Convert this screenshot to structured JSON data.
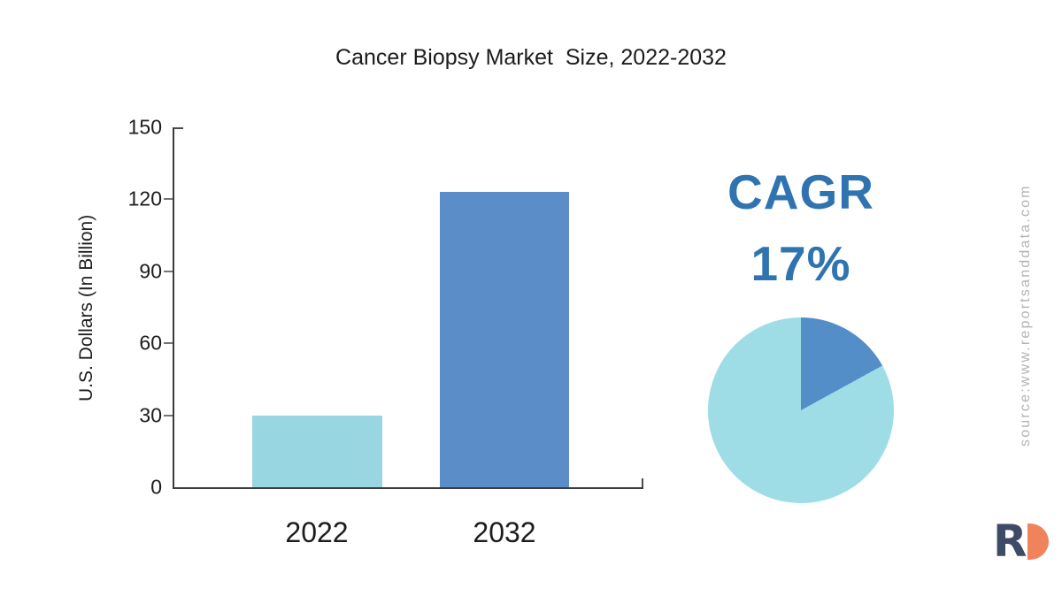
{
  "chart_data": [
    {
      "type": "bar",
      "title": "Cancer Biopsy Market  Size, 2022-2032",
      "categories": [
        "2022",
        "2032"
      ],
      "values": [
        30,
        123
      ],
      "xlabel": "",
      "ylabel": "U.S. Dollars (In Billion)",
      "ylim": [
        0,
        150
      ],
      "yticks": [
        0,
        30,
        60,
        90,
        120,
        150
      ],
      "grid": false,
      "legend": "none",
      "bar_colors": [
        "#98d7e2",
        "#5b8ec8"
      ]
    },
    {
      "type": "pie",
      "title": "CAGR 17%",
      "start_angle_deg": 0,
      "direction": "clockwise",
      "legend": "none",
      "slices": [
        {
          "label": "CAGR",
          "value": 17,
          "color": "#548ec9"
        },
        {
          "label": "remainder",
          "value": 83,
          "color": "#9edde6"
        }
      ]
    }
  ],
  "cagr": {
    "label": "CAGR",
    "value": "17%",
    "color": "#2f74b0"
  },
  "source": {
    "text": "source:www.reportsanddata.com"
  },
  "logo": {
    "r": "R",
    "d": "D",
    "r_color": "#3e4b66",
    "d_color": "#f0835c"
  },
  "colors": {
    "axis": "#3b3b3b",
    "tick": "#757575",
    "text": "#1c1c1c",
    "background": "#ffffff"
  }
}
